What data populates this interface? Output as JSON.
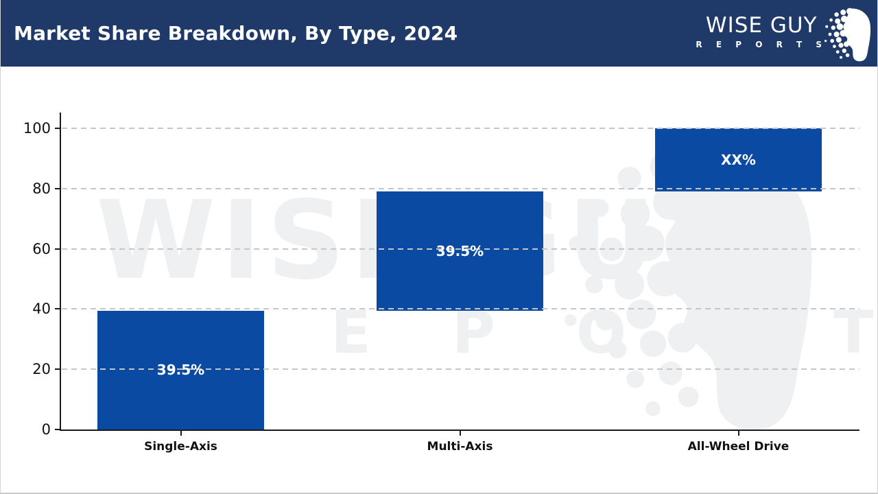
{
  "header": {
    "title": "Market Share Breakdown, By Type, 2024",
    "logo_line1": "WISE GUY",
    "logo_line2": "R E P O R T S"
  },
  "watermark": {
    "line1": "WISE GUY",
    "line2": "R E P O R T S"
  },
  "colors": {
    "header_bg": "#1f3a68",
    "bar": "#0b4aa2",
    "grid": "#c6c6c6",
    "axis": "#1a1a1a",
    "tick_label": "#111111",
    "bar_label": "#ffffff",
    "watermark": "#eff0f2"
  },
  "chart_data": {
    "type": "bar",
    "subtype": "waterfall",
    "title": "Market Share Breakdown, By Type, 2024",
    "categories": [
      "Single-Axis",
      "Multi-Axis",
      "All-Wheel Drive"
    ],
    "segments": [
      {
        "category": "Single-Axis",
        "start": 0,
        "end": 39.5,
        "label": "39.5%"
      },
      {
        "category": "Multi-Axis",
        "start": 39.5,
        "end": 79,
        "label": "39.5%"
      },
      {
        "category": "All-Wheel Drive",
        "start": 79,
        "end": 100,
        "label": "XX%"
      }
    ],
    "yticks": [
      0,
      20,
      40,
      60,
      80,
      100
    ],
    "ylim": [
      0,
      100
    ],
    "xlabel": "",
    "ylabel": "",
    "grid": "horizontal-dashed",
    "legend": "none",
    "bar_color": "#0b4aa2"
  }
}
